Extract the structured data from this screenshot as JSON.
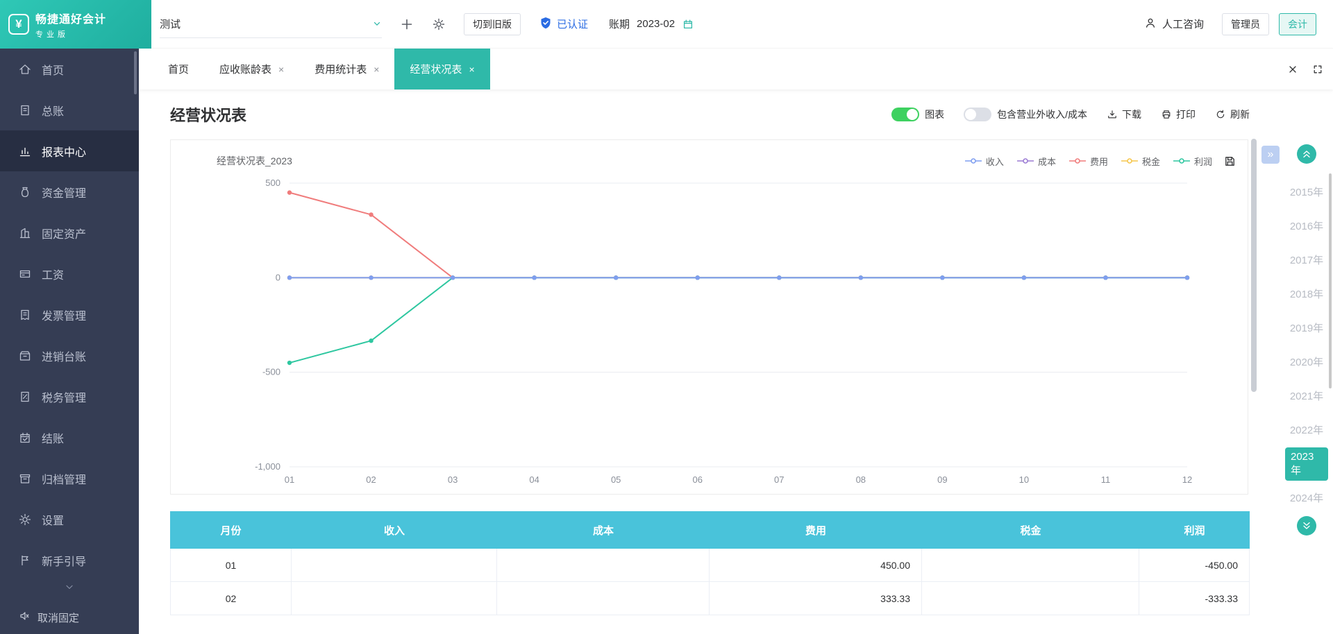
{
  "app": {
    "logo_title": "畅捷通好会计",
    "logo_subtitle": "专业版",
    "logo_glyph": "¥"
  },
  "colors": {
    "accent_teal": "#2fb9a9",
    "sidebar_bg": "#353d54",
    "table_header": "#49c3da",
    "toggle_on_green": "#3ed160",
    "certified_blue": "#2b6ce3",
    "panel_toggle_blue": "#bccff2"
  },
  "sidebar": {
    "items": [
      {
        "label": "首页",
        "icon": "home-icon",
        "active": false
      },
      {
        "label": "总账",
        "icon": "ledger-icon",
        "active": false
      },
      {
        "label": "报表中心",
        "icon": "report-icon",
        "active": true
      },
      {
        "label": "资金管理",
        "icon": "fund-icon",
        "active": false
      },
      {
        "label": "固定资产",
        "icon": "asset-icon",
        "active": false
      },
      {
        "label": "工资",
        "icon": "salary-icon",
        "active": false
      },
      {
        "label": "发票管理",
        "icon": "invoice-icon",
        "active": false
      },
      {
        "label": "进销台账",
        "icon": "inventory-icon",
        "active": false
      },
      {
        "label": "税务管理",
        "icon": "tax-icon",
        "active": false
      },
      {
        "label": "结账",
        "icon": "closing-icon",
        "active": false
      },
      {
        "label": "归档管理",
        "icon": "archive-icon",
        "active": false
      },
      {
        "label": "设置",
        "icon": "settings-icon",
        "active": false
      },
      {
        "label": "新手引导",
        "icon": "guide-icon",
        "active": false
      }
    ],
    "pin_label": "取消固定"
  },
  "topbar": {
    "account_set": "测试",
    "switch_old_label": "切到旧版",
    "certified_label": "已认证",
    "period_label": "账期",
    "period_value": "2023-02",
    "consult_label": "人工咨询",
    "admin_label": "管理员",
    "role_label": "会计"
  },
  "tabs": {
    "items": [
      {
        "label": "首页",
        "closable": false,
        "active": false
      },
      {
        "label": "应收账龄表",
        "closable": true,
        "active": false
      },
      {
        "label": "费用统计表",
        "closable": true,
        "active": false
      },
      {
        "label": "经营状况表",
        "closable": true,
        "active": true
      }
    ]
  },
  "page": {
    "title": "经营状况表",
    "toggle_chart_label": "图表",
    "toggle_chart_on": true,
    "toggle_include_label": "包含营业外收入/成本",
    "toggle_include_on": false,
    "download_label": "下载",
    "print_label": "打印",
    "refresh_label": "刷新",
    "panel_toggle_glyph": "»"
  },
  "chart_data": {
    "type": "line",
    "title": "经营状况表_2023",
    "x": [
      "01",
      "02",
      "03",
      "04",
      "05",
      "06",
      "07",
      "08",
      "09",
      "10",
      "11",
      "12"
    ],
    "series": [
      {
        "name": "收入",
        "color": "#7f9ef0",
        "values": [
          0,
          0,
          0,
          0,
          0,
          0,
          0,
          0,
          0,
          0,
          0,
          0
        ]
      },
      {
        "name": "成本",
        "color": "#9b7bd4",
        "values": [
          0,
          0,
          0,
          0,
          0,
          0,
          0,
          0,
          0,
          0,
          0,
          0
        ]
      },
      {
        "name": "费用",
        "color": "#f07c7c",
        "values": [
          450,
          333.33,
          0,
          0,
          0,
          0,
          0,
          0,
          0,
          0,
          0,
          0
        ]
      },
      {
        "name": "税金",
        "color": "#f6c64b",
        "values": [
          0,
          0,
          0,
          0,
          0,
          0,
          0,
          0,
          0,
          0,
          0,
          0
        ]
      },
      {
        "name": "利润",
        "color": "#2ec7a0",
        "values": [
          -450,
          -333.33,
          0,
          0,
          0,
          0,
          0,
          0,
          0,
          0,
          0,
          0
        ]
      }
    ],
    "ylim": [
      -1000,
      500
    ],
    "yticks": [
      500,
      0,
      -500,
      -1000
    ],
    "ytick_labels": [
      "500",
      "0",
      "-500",
      "-1,000"
    ],
    "grid": true,
    "legend_position": "top-right"
  },
  "table": {
    "headers": [
      "月份",
      "收入",
      "成本",
      "费用",
      "税金",
      "利润"
    ],
    "rows": [
      [
        "01",
        "",
        "",
        "450.00",
        "",
        "-450.00"
      ],
      [
        "02",
        "",
        "",
        "333.33",
        "",
        "-333.33"
      ]
    ]
  },
  "year_panel": {
    "years": [
      "2015年",
      "2016年",
      "2017年",
      "2018年",
      "2019年",
      "2020年",
      "2021年",
      "2022年",
      "2023年",
      "2024年"
    ],
    "selected": "2023年"
  }
}
